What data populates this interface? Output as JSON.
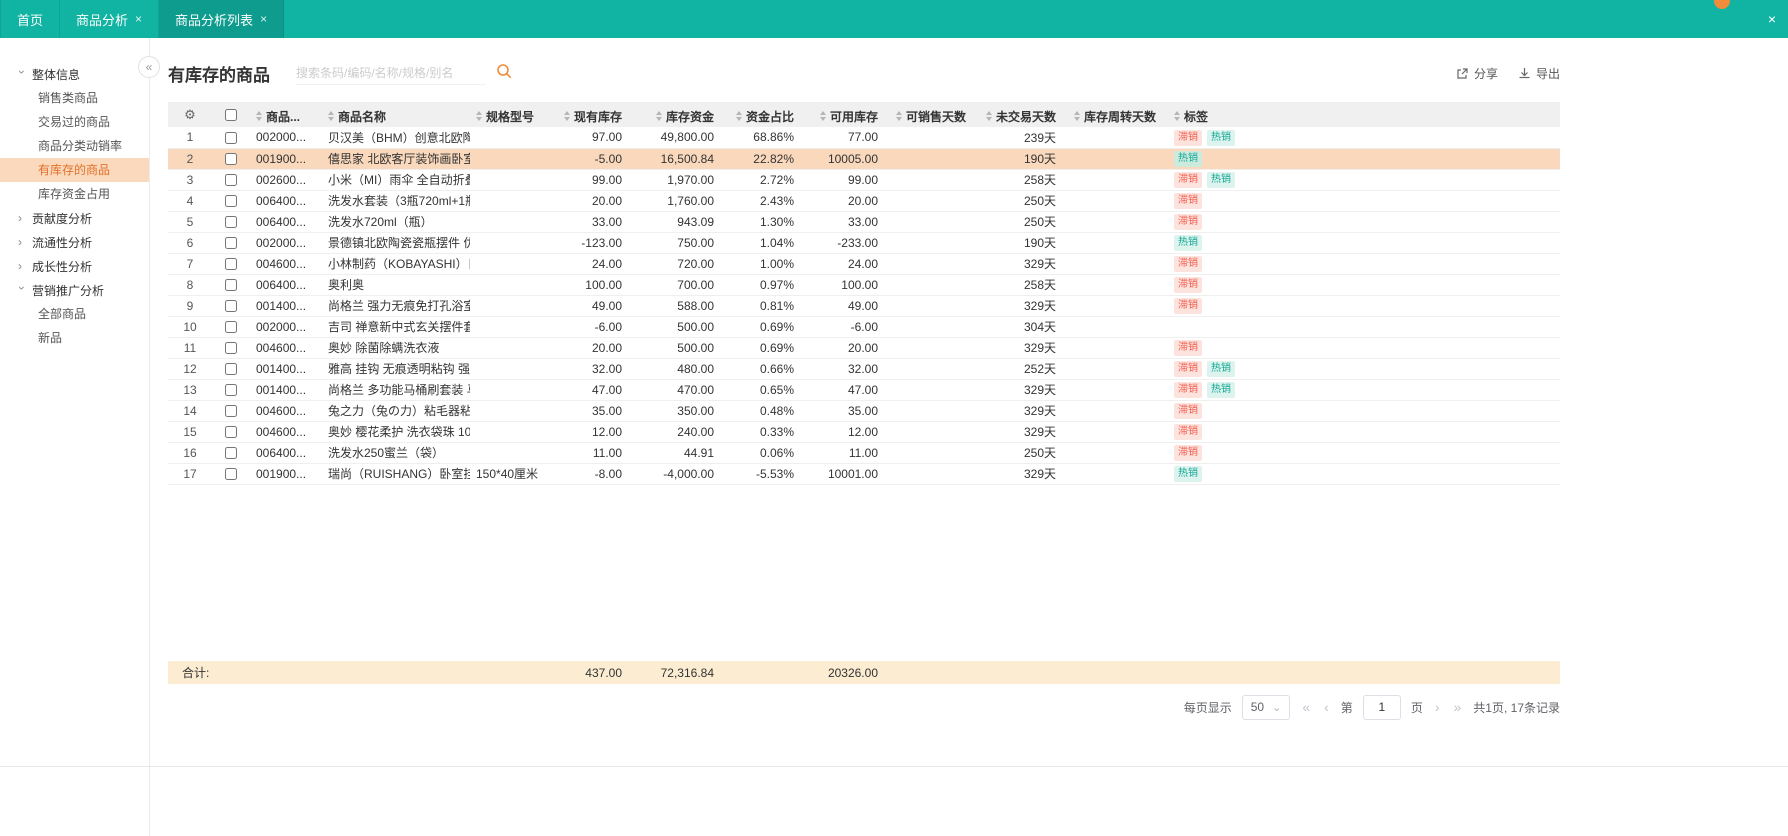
{
  "tabbar": {
    "tabs": [
      {
        "label": "首页",
        "closable": false,
        "active": false
      },
      {
        "label": "商品分析",
        "closable": true,
        "active": false
      },
      {
        "label": "商品分析列表",
        "closable": true,
        "active": true
      }
    ],
    "close_all_glyph": "×"
  },
  "sidebar": {
    "collapse_glyph": "«",
    "groups": [
      {
        "label": "整体信息",
        "expanded": true,
        "items": [
          {
            "label": "销售类商品",
            "selected": false
          },
          {
            "label": "交易过的商品",
            "selected": false
          },
          {
            "label": "商品分类动销率",
            "selected": false
          },
          {
            "label": "有库存的商品",
            "selected": true
          },
          {
            "label": "库存资金占用",
            "selected": false
          }
        ]
      },
      {
        "label": "贡献度分析",
        "expanded": false,
        "items": []
      },
      {
        "label": "流通性分析",
        "expanded": false,
        "items": []
      },
      {
        "label": "成长性分析",
        "expanded": false,
        "items": []
      },
      {
        "label": "营销推广分析",
        "expanded": true,
        "items": [
          {
            "label": "全部商品",
            "selected": false
          },
          {
            "label": "新品",
            "selected": false
          }
        ]
      }
    ]
  },
  "header": {
    "title": "有库存的商品",
    "search_placeholder": "搜索条码/编码/名称/规格/别名",
    "share_label": "分享",
    "export_label": "导出"
  },
  "table": {
    "gear_glyph": "⚙",
    "columns": [
      "商品...",
      "商品名称",
      "规格型号",
      "现有库存",
      "库存资金",
      "资金占比",
      "可用库存",
      "可销售天数",
      "未交易天数",
      "库存周转天数",
      "标签"
    ],
    "tag_styles": {
      "滞销": "slow",
      "热销": "hot"
    },
    "rows": [
      {
        "index": "1",
        "code": "002000...",
        "name": "贝汉美（BHM）创意北欧陶",
        "spec": "",
        "stock": "97.00",
        "fund": "49,800.00",
        "ratio": "68.86%",
        "avail": "77.00",
        "sell": "",
        "notrade": "239天",
        "turnover": "",
        "tags": [
          "滞销",
          "热销"
        ],
        "highlight": false
      },
      {
        "index": "2",
        "code": "001900...",
        "name": "僖思家 北欧客厅装饰画卧室",
        "spec": "",
        "stock": "-5.00",
        "fund": "16,500.84",
        "ratio": "22.82%",
        "avail": "10005.00",
        "sell": "",
        "notrade": "190天",
        "turnover": "",
        "tags": [
          "热销"
        ],
        "highlight": true
      },
      {
        "index": "3",
        "code": "002600...",
        "name": "小米（MI）雨伞 全自动折叠",
        "spec": "",
        "stock": "99.00",
        "fund": "1,970.00",
        "ratio": "2.72%",
        "avail": "99.00",
        "sell": "",
        "notrade": "258天",
        "turnover": "",
        "tags": [
          "滞销",
          "热销"
        ],
        "highlight": false
      },
      {
        "index": "4",
        "code": "006400...",
        "name": "洗发水套装（3瓶720ml+1瓶",
        "spec": "",
        "stock": "20.00",
        "fund": "1,760.00",
        "ratio": "2.43%",
        "avail": "20.00",
        "sell": "",
        "notrade": "250天",
        "turnover": "",
        "tags": [
          "滞销"
        ],
        "highlight": false
      },
      {
        "index": "5",
        "code": "006400...",
        "name": "洗发水720ml（瓶）",
        "spec": "",
        "stock": "33.00",
        "fund": "943.09",
        "ratio": "1.30%",
        "avail": "33.00",
        "sell": "",
        "notrade": "250天",
        "turnover": "",
        "tags": [
          "滞销"
        ],
        "highlight": false
      },
      {
        "index": "6",
        "code": "002000...",
        "name": "景德镇北欧陶瓷瓷瓶摆件 优",
        "spec": "",
        "stock": "-123.00",
        "fund": "750.00",
        "ratio": "1.04%",
        "avail": "-233.00",
        "sell": "",
        "notrade": "190天",
        "turnover": "",
        "tags": [
          "热销"
        ],
        "highlight": false
      },
      {
        "index": "7",
        "code": "004600...",
        "name": "小林制药（KOBAYASHI）日",
        "spec": "",
        "stock": "24.00",
        "fund": "720.00",
        "ratio": "1.00%",
        "avail": "24.00",
        "sell": "",
        "notrade": "329天",
        "turnover": "",
        "tags": [
          "滞销"
        ],
        "highlight": false
      },
      {
        "index": "8",
        "code": "006400...",
        "name": "奥利奥",
        "spec": "",
        "stock": "100.00",
        "fund": "700.00",
        "ratio": "0.97%",
        "avail": "100.00",
        "sell": "",
        "notrade": "258天",
        "turnover": "",
        "tags": [
          "滞销"
        ],
        "highlight": false
      },
      {
        "index": "9",
        "code": "001400...",
        "name": "尚格兰 强力无痕免打孔浴室",
        "spec": "",
        "stock": "49.00",
        "fund": "588.00",
        "ratio": "0.81%",
        "avail": "49.00",
        "sell": "",
        "notrade": "329天",
        "turnover": "",
        "tags": [
          "滞销"
        ],
        "highlight": false
      },
      {
        "index": "10",
        "code": "002000...",
        "name": "吉司 禅意新中式玄关摆件套",
        "spec": "",
        "stock": "-6.00",
        "fund": "500.00",
        "ratio": "0.69%",
        "avail": "-6.00",
        "sell": "",
        "notrade": "304天",
        "turnover": "",
        "tags": [],
        "highlight": false
      },
      {
        "index": "11",
        "code": "004600...",
        "name": "奥妙 除菌除螨洗衣液",
        "spec": "",
        "stock": "20.00",
        "fund": "500.00",
        "ratio": "0.69%",
        "avail": "20.00",
        "sell": "",
        "notrade": "329天",
        "turnover": "",
        "tags": [
          "滞销"
        ],
        "highlight": false
      },
      {
        "index": "12",
        "code": "001400...",
        "name": "雅高 挂钩 无痕透明粘钩 强",
        "spec": "",
        "stock": "32.00",
        "fund": "480.00",
        "ratio": "0.66%",
        "avail": "32.00",
        "sell": "",
        "notrade": "252天",
        "turnover": "",
        "tags": [
          "滞销",
          "热销"
        ],
        "highlight": false
      },
      {
        "index": "13",
        "code": "001400...",
        "name": "尚格兰 多功能马桶刷套装 马",
        "spec": "",
        "stock": "47.00",
        "fund": "470.00",
        "ratio": "0.65%",
        "avail": "47.00",
        "sell": "",
        "notrade": "329天",
        "turnover": "",
        "tags": [
          "滞销",
          "热销"
        ],
        "highlight": false
      },
      {
        "index": "14",
        "code": "004600...",
        "name": "兔之力（兔の力）粘毛器粘",
        "spec": "",
        "stock": "35.00",
        "fund": "350.00",
        "ratio": "0.48%",
        "avail": "35.00",
        "sell": "",
        "notrade": "329天",
        "turnover": "",
        "tags": [
          "滞销"
        ],
        "highlight": false
      },
      {
        "index": "15",
        "code": "004600...",
        "name": "奥妙 樱花柔护 洗衣袋珠 10",
        "spec": "",
        "stock": "12.00",
        "fund": "240.00",
        "ratio": "0.33%",
        "avail": "12.00",
        "sell": "",
        "notrade": "329天",
        "turnover": "",
        "tags": [
          "滞销"
        ],
        "highlight": false
      },
      {
        "index": "16",
        "code": "006400...",
        "name": "洗发水250蜜兰（袋）",
        "spec": "",
        "stock": "11.00",
        "fund": "44.91",
        "ratio": "0.06%",
        "avail": "11.00",
        "sell": "",
        "notrade": "250天",
        "turnover": "",
        "tags": [
          "滞销"
        ],
        "highlight": false
      },
      {
        "index": "17",
        "code": "001900...",
        "name": "瑞尚（RUISHANG）卧室挂",
        "spec": "150*40厘米",
        "stock": "-8.00",
        "fund": "-4,000.00",
        "ratio": "-5.53%",
        "avail": "10001.00",
        "sell": "",
        "notrade": "329天",
        "turnover": "",
        "tags": [
          "热销"
        ],
        "highlight": false
      }
    ],
    "summary": {
      "label": "合计:",
      "stock": "437.00",
      "fund": "72,316.84",
      "ratio": "",
      "avail": "20326.00"
    }
  },
  "pagination": {
    "page_size_label": "每页显示",
    "page_size": "50",
    "first_glyph": "«",
    "prev_glyph": "‹",
    "next_glyph": "›",
    "last_glyph": "»",
    "page_prefix": "第",
    "page": "1",
    "page_suffix": "页",
    "total_text": "共1页, 17条记录"
  }
}
